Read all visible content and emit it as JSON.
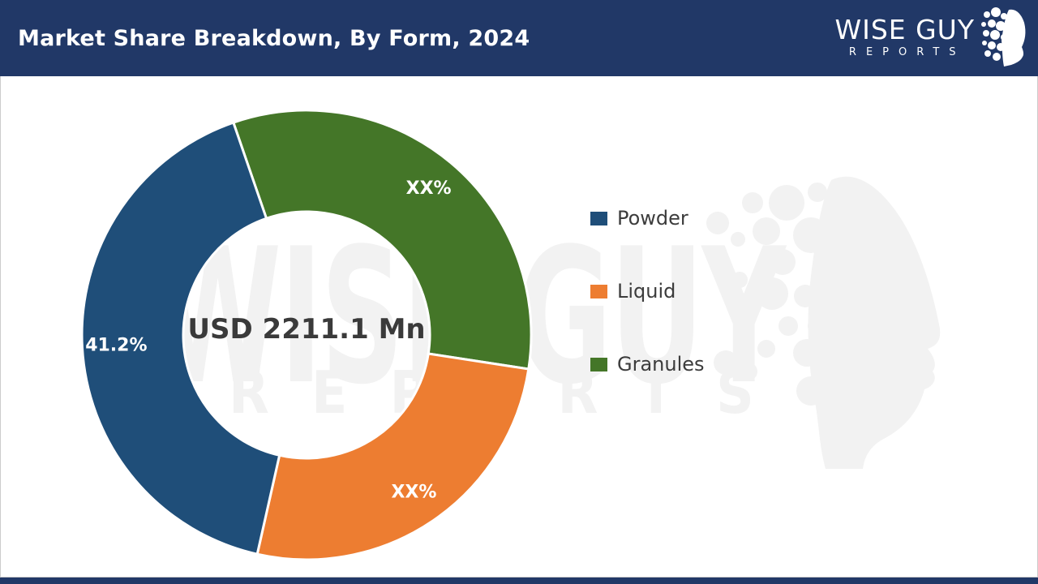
{
  "header": {
    "title": "Market Share Breakdown, By Form, 2024",
    "logo": {
      "line1": "WISE GUY",
      "line2": "REPORTS"
    }
  },
  "watermark": {
    "line1": "WISE GUY",
    "line2": "REPORTS"
  },
  "chart_data": {
    "type": "pie",
    "subtype": "donut",
    "title": "Market Share Breakdown, By Form, 2024",
    "center_label": "USD 2211.1 Mn",
    "rotation_deg": -19,
    "segments": [
      {
        "name": "Granules",
        "display_label": "XX%",
        "value": 32.7,
        "color": "#447628"
      },
      {
        "name": "Liquid",
        "display_label": "XX%",
        "value": 26.1,
        "color": "#ED7D31"
      },
      {
        "name": "Powder",
        "display_label": "41.2%",
        "value": 41.2,
        "color": "#1F4E79"
      }
    ],
    "legend": [
      {
        "label": "Powder",
        "color": "#1F4E79"
      },
      {
        "label": "Liquid",
        "color": "#ED7D31"
      },
      {
        "label": "Granules",
        "color": "#447628"
      }
    ],
    "legend_position": "right",
    "grid": false
  },
  "colors": {
    "header_bg": "#213867",
    "footer_bg": "#213867",
    "center_text": "#3a3a3a",
    "legend_text": "#3c3c3c",
    "watermark": "#f2f2f2",
    "segment_gap": "#ffffff"
  }
}
